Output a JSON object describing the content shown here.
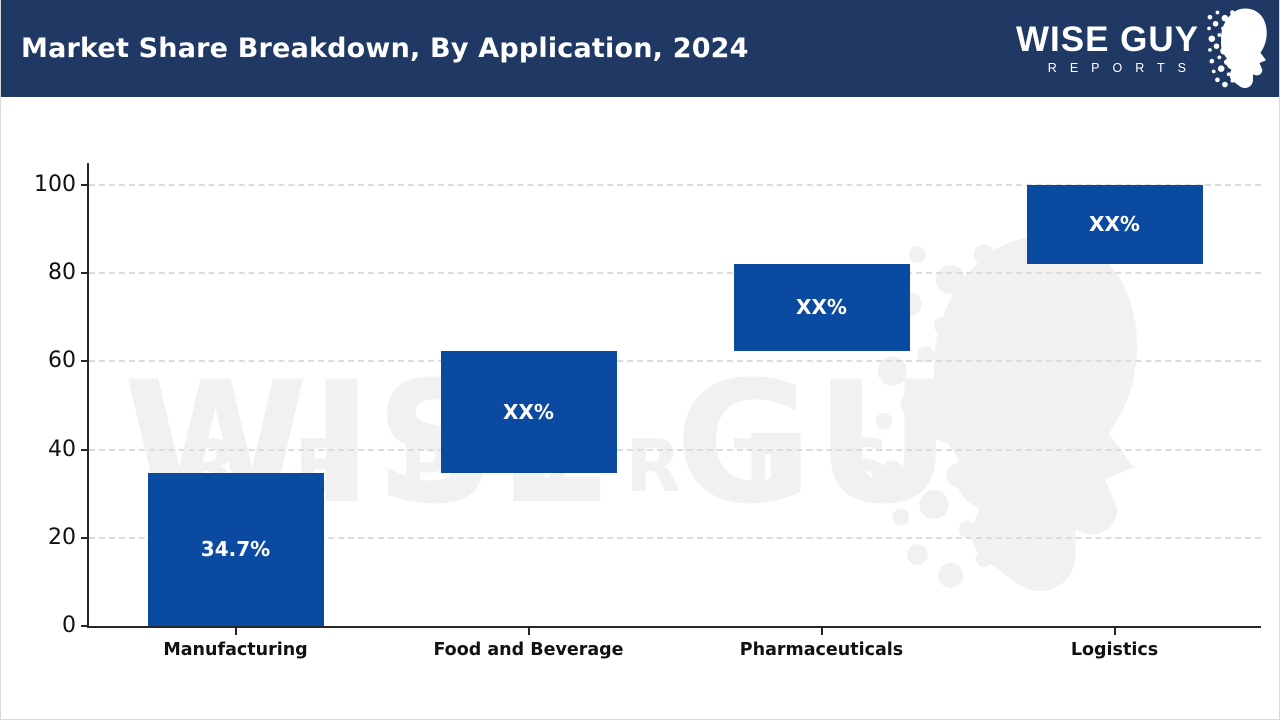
{
  "header": {
    "title": "Market Share Breakdown, By Application, 2024",
    "logo": {
      "wordmark": "WISE GUY",
      "subtitle": "REPORTS"
    }
  },
  "watermark": {
    "wordmark": "WISE GUY",
    "subtitle": "REPORTS"
  },
  "colors": {
    "header_bg": "#203864",
    "bar": "#0b4aa1",
    "bar_label": "#ffffff",
    "grid": "#dcdcdc",
    "axis": "#262626",
    "watermark": "#f1f1f1"
  },
  "chart_data": {
    "type": "bar",
    "subtype": "floating-segment-waterfall",
    "title": "Market Share Breakdown, By Application, 2024",
    "categories": [
      "Manufacturing",
      "Food and Beverage",
      "Pharmaceuticals",
      "Logistics"
    ],
    "segments": [
      {
        "category": "Manufacturing",
        "start": 0,
        "end": 34.7,
        "label": "34.7%"
      },
      {
        "category": "Food and Beverage",
        "start": 34.7,
        "end": 62.4,
        "label": "XX%"
      },
      {
        "category": "Pharmaceuticals",
        "start": 62.4,
        "end": 82.1,
        "label": "XX%"
      },
      {
        "category": "Logistics",
        "start": 82.1,
        "end": 100,
        "label": "XX%"
      }
    ],
    "yticks": [
      0,
      20,
      40,
      60,
      80,
      100
    ],
    "ylim": [
      0,
      105
    ],
    "xlabel": "",
    "ylabel": "",
    "grid": "horizontal-dashed",
    "legend": "none"
  }
}
